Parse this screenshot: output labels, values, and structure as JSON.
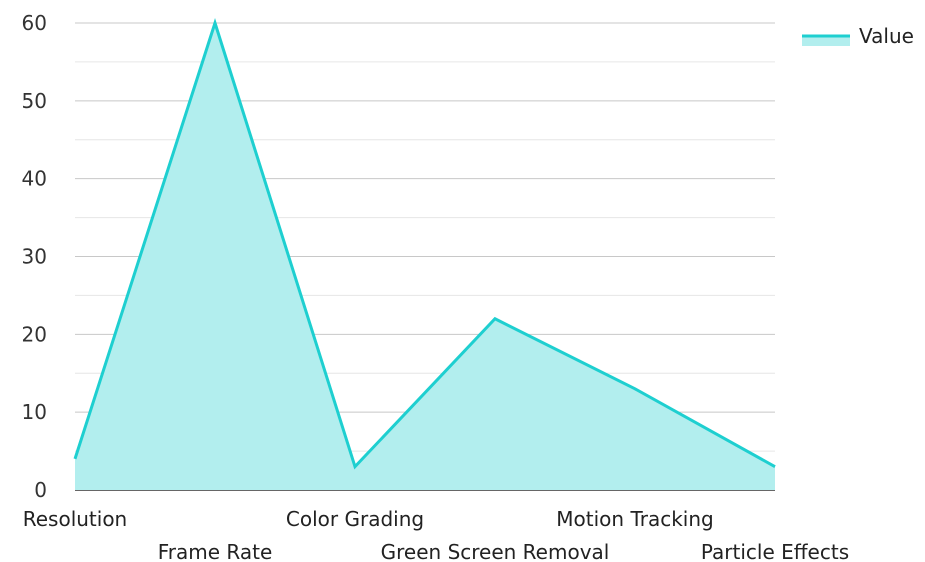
{
  "chart_data": {
    "type": "area",
    "categories": [
      "Resolution",
      "Frame Rate",
      "Color Grading",
      "Green Screen Removal",
      "Motion Tracking",
      "Particle Effects"
    ],
    "series": [
      {
        "name": "Value",
        "values": [
          4,
          60,
          3,
          22,
          13,
          3
        ]
      }
    ],
    "ylim": [
      0,
      60
    ],
    "yticks": [
      0,
      10,
      20,
      30,
      40,
      50,
      60
    ],
    "grid": true,
    "legend": "top-right",
    "colors": {
      "line": "#1ecfd0",
      "fill": "#b2eeee",
      "grid": "#c8c8c8",
      "axis": "#333333"
    }
  }
}
